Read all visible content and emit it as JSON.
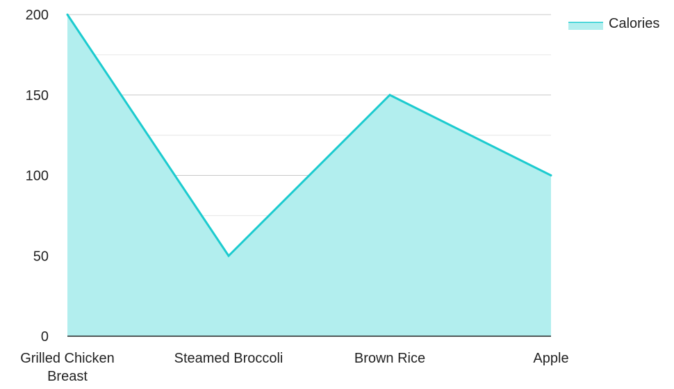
{
  "chart_data": {
    "type": "area",
    "title": "",
    "xlabel": "",
    "ylabel": "",
    "categories": [
      "Grilled Chicken Breast",
      "Steamed Broccoli",
      "Brown Rice",
      "Apple"
    ],
    "category_lines": [
      [
        "Grilled Chicken",
        "Breast"
      ],
      [
        "Steamed Broccoli"
      ],
      [
        "Brown Rice"
      ],
      [
        "Apple"
      ]
    ],
    "series": [
      {
        "name": "Calories",
        "values": [
          200,
          50,
          150,
          100
        ],
        "color": "#1ccbcf",
        "fill": "#b2eeee"
      }
    ],
    "ylim": [
      0,
      200
    ],
    "yticks": [
      0,
      50,
      100,
      150,
      200
    ],
    "grid": true,
    "legend": {
      "position": "top-right",
      "label": "Calories"
    }
  }
}
